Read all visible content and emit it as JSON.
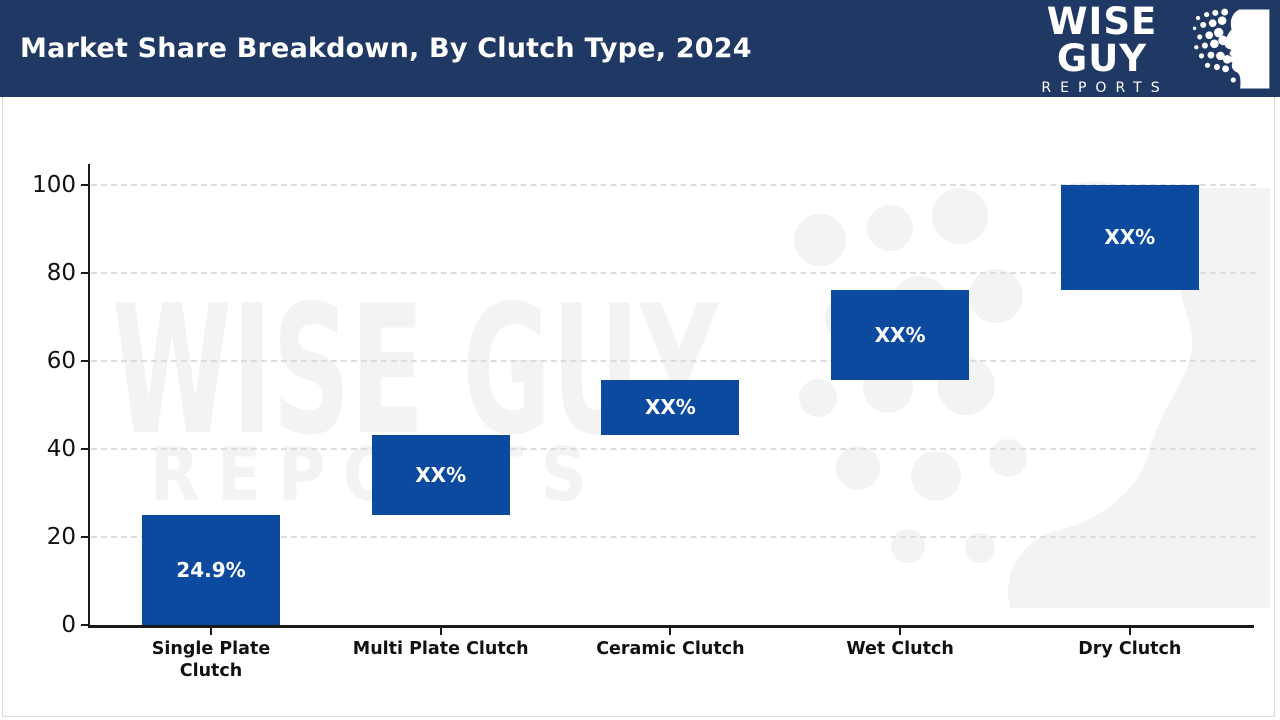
{
  "header": {
    "title": "Market Share Breakdown, By Clutch Type, 2024",
    "bg_color": "#1f3864",
    "logo": {
      "line1": "WISE GUY",
      "line2": "REPORTS"
    }
  },
  "watermark": {
    "line1": "WISE GUY",
    "line2": "REPORTS"
  },
  "chart_data": {
    "type": "bar",
    "subtype": "floating-waterfall",
    "title": "Market Share Breakdown, By Clutch Type, 2024",
    "categories": [
      "Single Plate\nClutch",
      "Multi Plate Clutch",
      "Ceramic Clutch",
      "Wet Clutch",
      "Dry Clutch"
    ],
    "series": [
      {
        "name": "Market share (%)",
        "segments": [
          {
            "category": "Single Plate Clutch",
            "start": 0,
            "end": 24.9,
            "label": "24.9%"
          },
          {
            "category": "Multi Plate Clutch",
            "start": 24.9,
            "end": 43.2,
            "label": "XX%"
          },
          {
            "category": "Ceramic Clutch",
            "start": 43.2,
            "end": 55.7,
            "label": "XX%"
          },
          {
            "category": "Wet Clutch",
            "start": 55.7,
            "end": 76.2,
            "label": "XX%"
          },
          {
            "category": "Dry Clutch",
            "start": 76.2,
            "end": 100,
            "label": "XX%"
          }
        ]
      }
    ],
    "xlabel": "",
    "ylabel": "",
    "ylim": [
      0,
      100
    ],
    "yticks": [
      0,
      20,
      40,
      60,
      80,
      100
    ],
    "grid": "horizontal-dashed",
    "legend": "none",
    "colors": {
      "bar": "#0b4a9e",
      "bar_label": "#ffffff",
      "axis": "#1a1a1a",
      "gridline": "#dcdcdc",
      "tick_label": "#111111",
      "category_label": "#111111",
      "watermark": "#f3f3f3"
    }
  }
}
